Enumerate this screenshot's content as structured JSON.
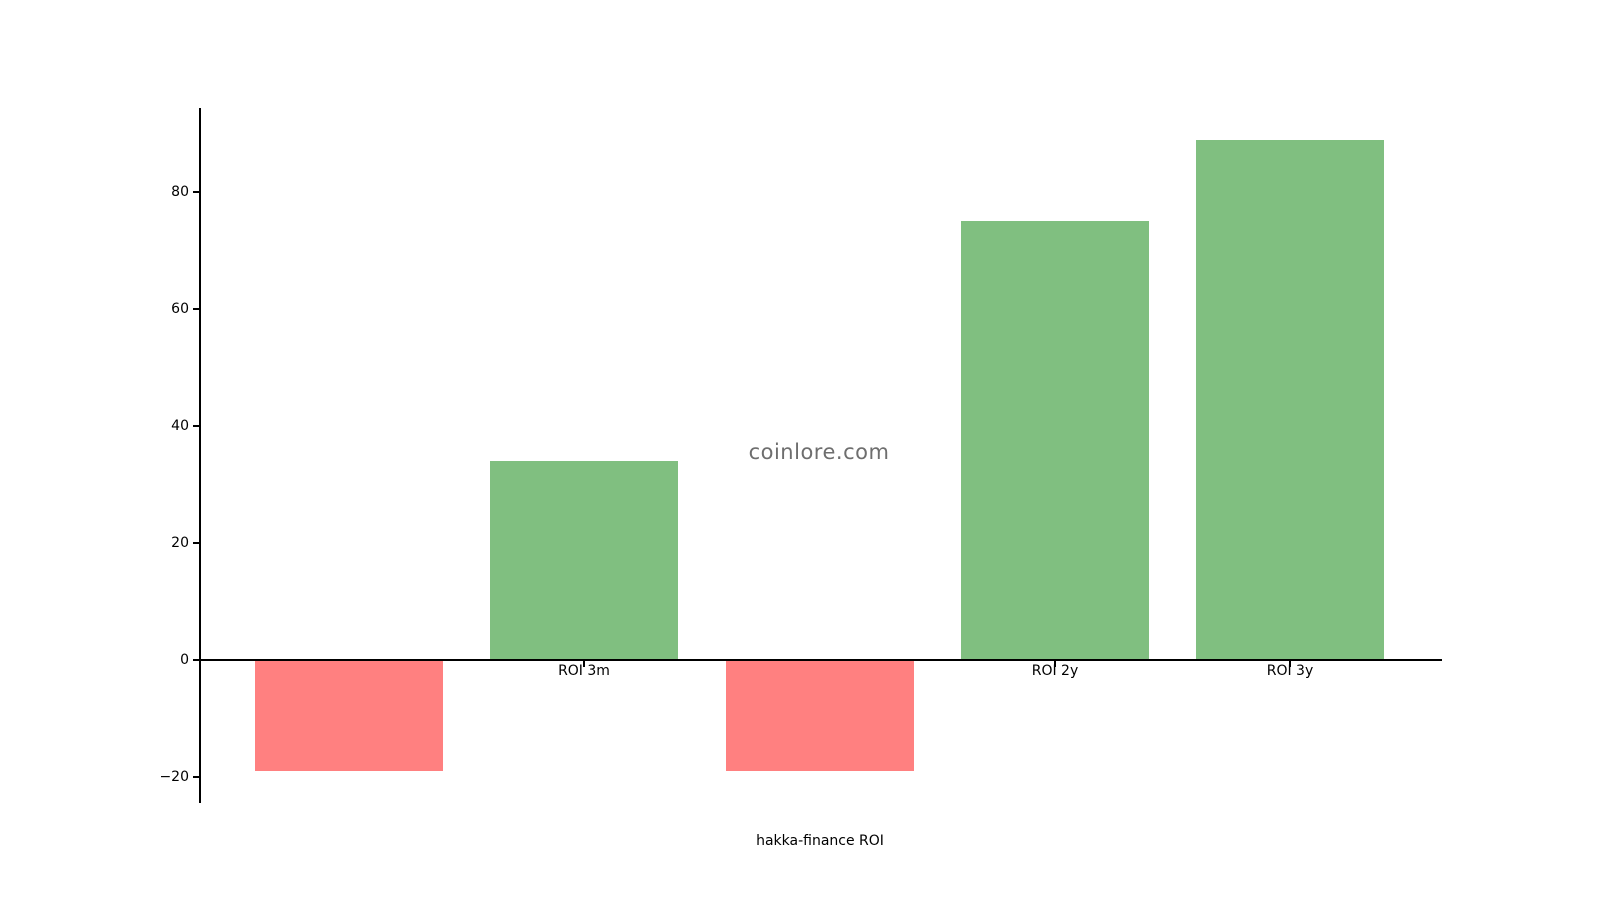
{
  "page": {
    "background": "#ffffff"
  },
  "watermark": {
    "text": "coinlore.com",
    "color": "#6e6e6e"
  },
  "chart_data": {
    "type": "bar",
    "title": "hakka-finance ROI",
    "xlabel": "",
    "ylabel": "",
    "categories": [
      "",
      "ROI 3m",
      "",
      "ROI 2y",
      "ROI 3y"
    ],
    "values": [
      -19,
      34,
      -19,
      75,
      89
    ],
    "ylim": [
      -24.4,
      94.4
    ],
    "yticks": [
      80,
      60,
      40,
      20,
      0,
      -20
    ],
    "ytick_labels": [
      "80",
      "60",
      "40",
      "20",
      "0",
      "−20"
    ],
    "positive_color": "#80bf80",
    "negative_color": "#ff8080",
    "axis_color": "#000000",
    "tick_label_color": "#000000",
    "grid": false,
    "legend": false,
    "baseline": 0
  }
}
